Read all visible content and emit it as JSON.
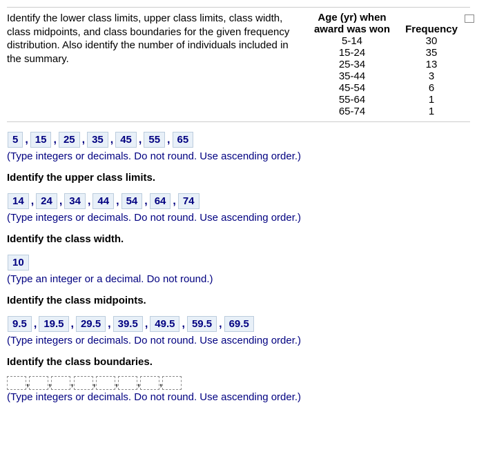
{
  "instructions": "Identify the lower class limits, upper class limits, class width, class midpoints, and class boundaries for the given frequency distribution. Also identify the number of individuals included in the summary.",
  "table": {
    "header1_line1": "Age (yr) when",
    "header1_line2": "award was won",
    "header2": "Frequency",
    "rows": [
      {
        "age": "5-14",
        "freq": "30"
      },
      {
        "age": "15-24",
        "freq": "35"
      },
      {
        "age": "25-34",
        "freq": "13"
      },
      {
        "age": "35-44",
        "freq": "3"
      },
      {
        "age": "45-54",
        "freq": "6"
      },
      {
        "age": "55-64",
        "freq": "1"
      },
      {
        "age": "65-74",
        "freq": "1"
      }
    ]
  },
  "lower_limits": [
    "5",
    "15",
    "25",
    "35",
    "45",
    "55",
    "65"
  ],
  "hint_ascending": "(Type integers or decimals. Do not round. Use ascending order.)",
  "prompt_upper": "Identify the upper class limits.",
  "upper_limits": [
    "14",
    "24",
    "34",
    "44",
    "54",
    "64",
    "74"
  ],
  "prompt_width": "Identify the class width.",
  "width": "10",
  "hint_single": "(Type an integer or a decimal. Do not round.)",
  "prompt_midpoints": "Identify the class midpoints.",
  "midpoints": [
    "9.5",
    "19.5",
    "29.5",
    "39.5",
    "49.5",
    "59.5",
    "69.5"
  ],
  "prompt_boundaries": "Identify the class boundaries.",
  "boundaries_count": 8
}
